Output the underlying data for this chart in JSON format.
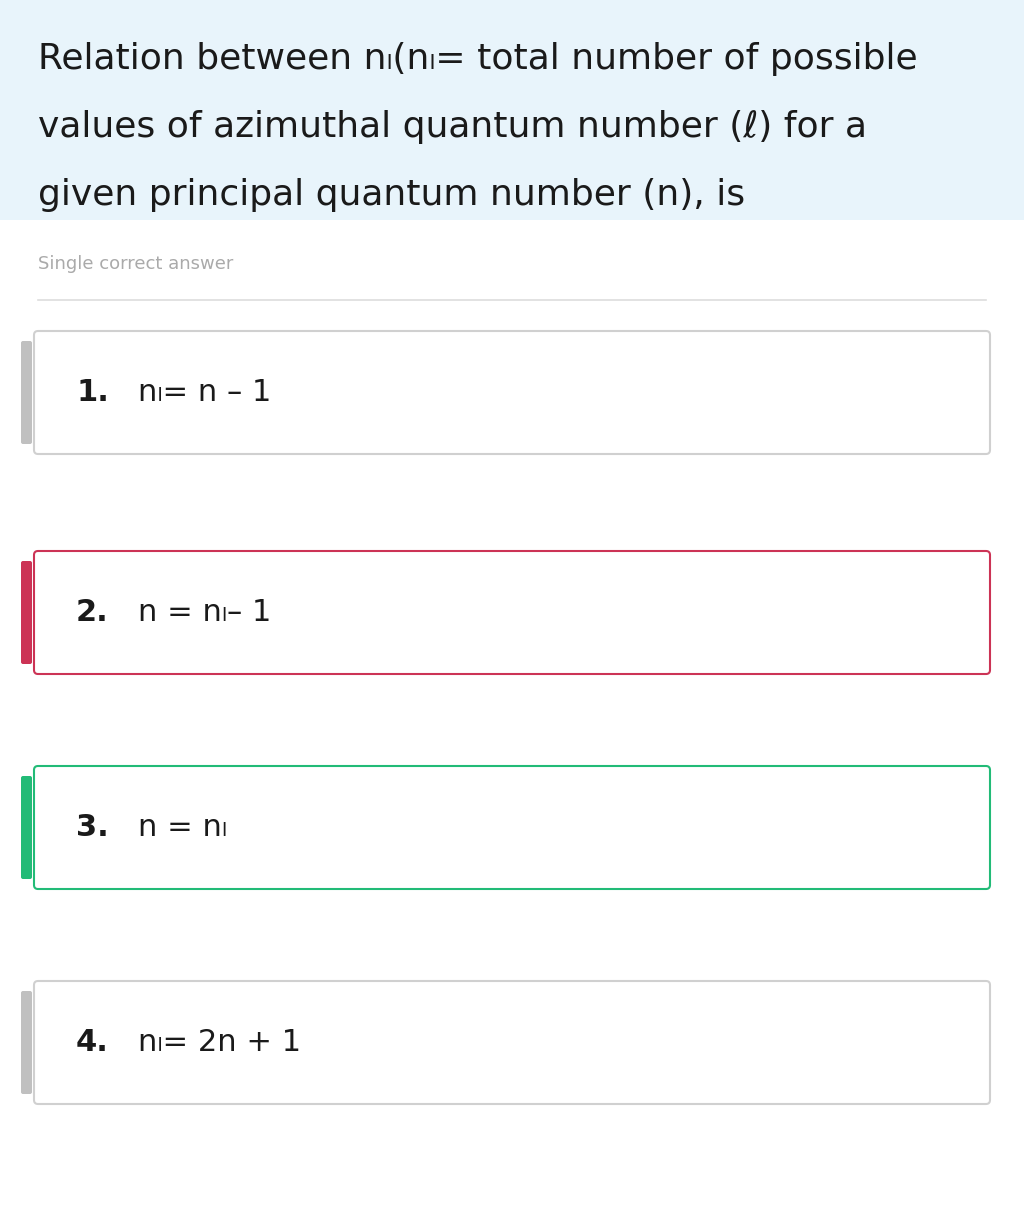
{
  "title_lines": [
    "Relation between nₗ(nₗ= total number of possible",
    "values of azimuthal quantum number (ℓ) for a",
    "given principal quantum number (n), is"
  ],
  "subtitle": "Single correct answer",
  "bg_color": "#ffffff",
  "header_bg": "#e8f4fb",
  "options": [
    {
      "number": "1.",
      "text": "nₗ= n – 1",
      "box_border_color": "#d0d0d0",
      "bar_color": "#c0c0c0",
      "bg_color": "#ffffff",
      "bold": false
    },
    {
      "number": "2.",
      "text": "n = nₗ– 1",
      "box_border_color": "#cc3355",
      "bar_color": "#cc3355",
      "bg_color": "#ffffff",
      "bold": false
    },
    {
      "number": "3.",
      "text": "n = nₗ",
      "box_border_color": "#22bb77",
      "bar_color": "#22bb77",
      "bg_color": "#ffffff",
      "bold": false
    },
    {
      "number": "4.",
      "text": "nₗ= 2n + 1",
      "box_border_color": "#d0d0d0",
      "bar_color": "#c0c0c0",
      "bg_color": "#ffffff",
      "bold": false
    }
  ],
  "title_fontsize": 26,
  "subtitle_fontsize": 13,
  "option_num_fontsize": 22,
  "option_text_fontsize": 22,
  "figsize": [
    10.24,
    12.07
  ],
  "dpi": 100
}
